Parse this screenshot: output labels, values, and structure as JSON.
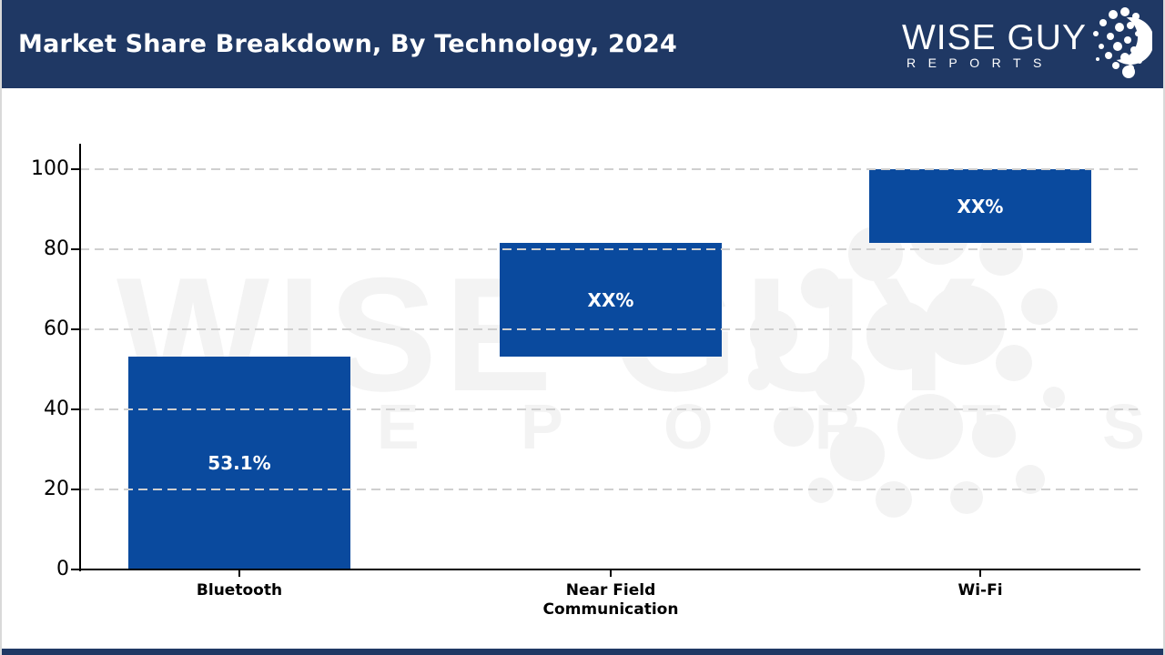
{
  "header": {
    "title": "Market Share Breakdown, By Technology, 2024",
    "logo": {
      "line1": "WISE GUY",
      "line2": "REPORTS",
      "head_icon": "dotted-face-profile-icon"
    }
  },
  "watermark": {
    "line1": "WISE GUY",
    "line2": "R E P O R T S",
    "head_icon": "dotted-face-profile-watermark-icon"
  },
  "chart_data": {
    "type": "bar",
    "variant": "waterfall-floating-bars",
    "title": "Market Share Breakdown, By Technology, 2024",
    "categories": [
      "Bluetooth",
      "Near Field Communication",
      "Wi-Fi"
    ],
    "category_display": [
      [
        "Bluetooth"
      ],
      [
        "Near Field",
        "Communication"
      ],
      [
        "Wi-Fi"
      ]
    ],
    "segments": [
      {
        "category": "Bluetooth",
        "start": 0,
        "end": 53.1,
        "label": "53.1%"
      },
      {
        "category": "Near Field Communication",
        "start": 53.1,
        "end": 81.7,
        "label": "XX%"
      },
      {
        "category": "Wi-Fi",
        "start": 81.7,
        "end": 100,
        "label": "XX%"
      }
    ],
    "xlabel": "",
    "ylabel": "",
    "ylim": [
      0,
      100
    ],
    "yticks": [
      0,
      20,
      40,
      60,
      80,
      100
    ],
    "grid": "horizontal-dashed-over-bars",
    "legend": "none",
    "bar_color": "#0a4a9e",
    "bar_label_color": "#ffffff"
  },
  "colors": {
    "header_bg": "#1f3864",
    "footer_bg": "#1f3864",
    "bar": "#0a4a9e",
    "grid": "#cfcfcf",
    "axis": "#000000",
    "watermark": "#f3f3f3",
    "frame_border": "#d9d9d9"
  }
}
